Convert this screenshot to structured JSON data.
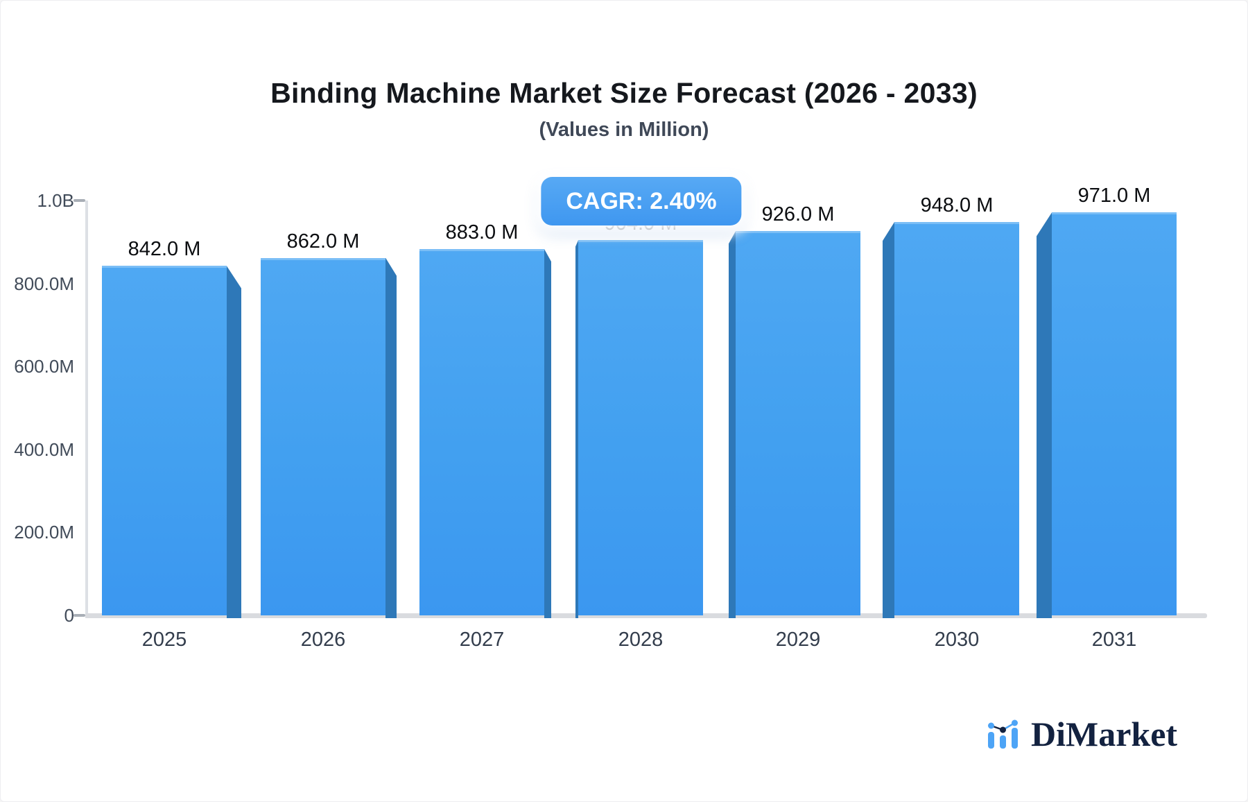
{
  "title": "Binding Machine Market Size Forecast (2026 - 2033)",
  "subtitle": "(Values in Million)",
  "cagr_badge": "CAGR: 2.40%",
  "logo": {
    "text": "DiMarket"
  },
  "chart_data": {
    "type": "bar",
    "title": "Binding Machine Market Size Forecast (2026 - 2033)",
    "subtitle": "(Values in Million)",
    "categories": [
      "2025",
      "2026",
      "2027",
      "2028",
      "2029",
      "2030",
      "2031"
    ],
    "values": [
      842,
      862,
      883,
      904,
      926,
      948,
      971
    ],
    "value_labels": [
      "842.0 M",
      "862.0 M",
      "883.0 M",
      "904.0 M",
      "926.0 M",
      "948.0 M",
      "971.0 M"
    ],
    "value_unit": "M",
    "cagr_annotation": "CAGR: 2.40%",
    "y_axis": {
      "ylim": [
        0,
        1000
      ],
      "ticks": [
        {
          "label": "1.0B",
          "value": 1000,
          "dash": true
        },
        {
          "label": "800.0M",
          "value": 800,
          "dash": false
        },
        {
          "label": "600.0M",
          "value": 600,
          "dash": false
        },
        {
          "label": "400.0M",
          "value": 400,
          "dash": false
        },
        {
          "label": "200.0M",
          "value": 200,
          "dash": false
        },
        {
          "label": "0",
          "value": 0,
          "dash": true
        }
      ]
    },
    "grid": false,
    "legend": null,
    "style": "pseudo-3d bars, perspective vanishing at center bar"
  },
  "colors": {
    "bar_front": "#42A0F0",
    "bar_front_top": "#4FA8F3",
    "bar_front_bottom": "#3B97F0",
    "bar_side": "#2E78B8",
    "badge_bg_top": "#57A9F4",
    "badge_bg_bottom": "#3F97F0",
    "axis": "#DDE0E5",
    "baseline": "#D9DBDF",
    "tick": "#A8AEB6",
    "logo_navy": "#132240",
    "logo_blue": "#4DA4F6"
  }
}
